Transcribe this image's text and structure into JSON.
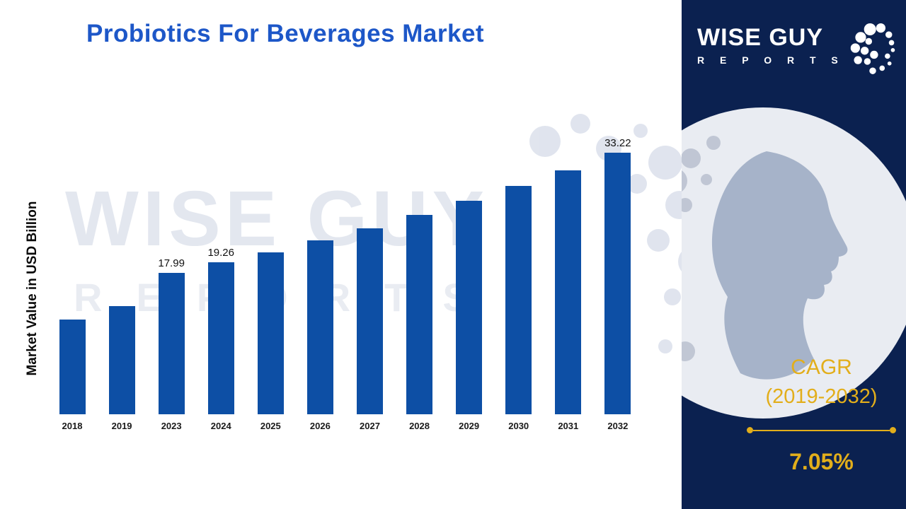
{
  "title": "Probiotics For Beverages Market",
  "watermark": {
    "line1": "WISE GUY",
    "line2": "REPORTS"
  },
  "brand": {
    "name": "WISE GUY",
    "reports": "R E P O R T S",
    "cagr_label": "CAGR",
    "cagr_range": "(2019-2032)",
    "cagr_value": "7.05%",
    "panel_color": "#0b2150",
    "gold_color": "#e2ae1b"
  },
  "chart_data": {
    "type": "bar",
    "title": "Probiotics For Beverages Market",
    "xlabel": "",
    "ylabel": "Market Value in USD Billion",
    "bar_color": "#0d4fa5",
    "grid": false,
    "legend": false,
    "ylim": [
      0,
      35
    ],
    "categories": [
      "2018",
      "2019",
      "2023",
      "2024",
      "2025",
      "2026",
      "2027",
      "2028",
      "2029",
      "2030",
      "2031",
      "2032"
    ],
    "values": [
      12.0,
      13.7,
      17.99,
      19.26,
      20.6,
      22.1,
      23.6,
      25.3,
      27.1,
      29.0,
      31.0,
      33.22
    ],
    "data_labels": [
      "",
      "",
      "17.99",
      "19.26",
      "",
      "",
      "",
      "",
      "",
      "",
      "",
      "33.22"
    ]
  }
}
